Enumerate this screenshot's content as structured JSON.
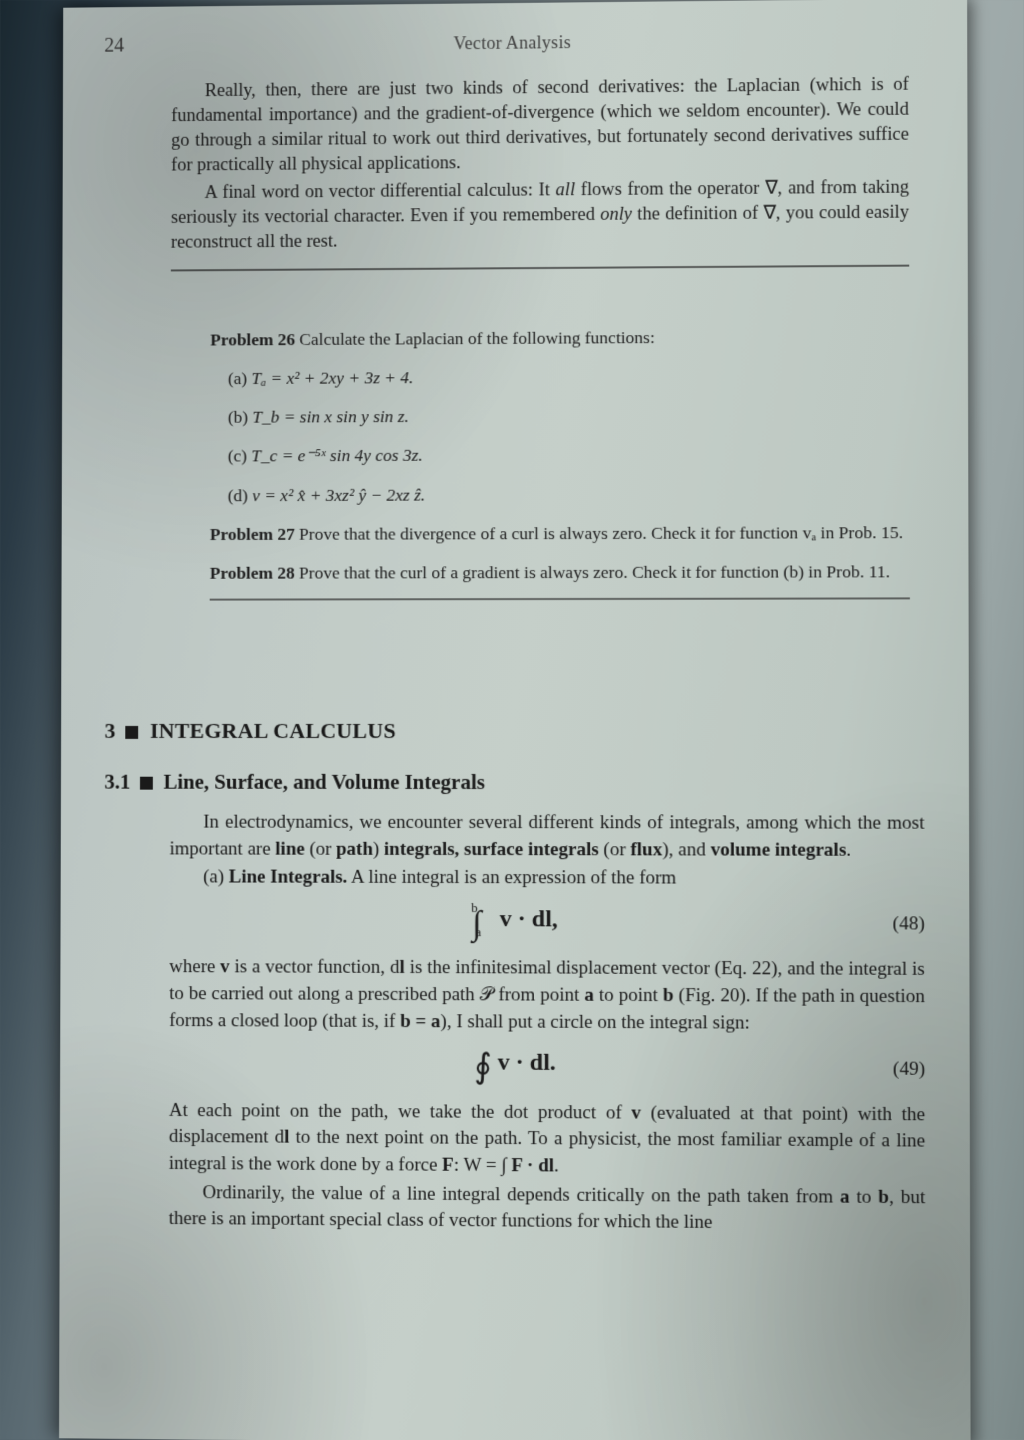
{
  "page_number": "24",
  "running_head": "Vector Analysis",
  "paragraphs": {
    "p1": "Really, then, there are just two kinds of second derivatives: the Laplacian (which is of fundamental importance) and the gradient-of-divergence (which we seldom encounter). We could go through a similar ritual to work out third derivatives, but fortunately second derivatives suffice for practically all physical applications.",
    "p2a": "A final word on vector differential calculus: It ",
    "p2_em1": "all",
    "p2b": " flows from the operator ∇, and from taking seriously its vectorial character. Even if you remembered ",
    "p2_em2": "only",
    "p2c": " the definition of ∇, you could easily reconstruct all the rest."
  },
  "problems": {
    "p26_lead": "Problem 26",
    "p26_text": " Calculate the Laplacian of the following functions:",
    "p26a_label": "(a) ",
    "p26a": "Tₐ = x² + 2xy + 3z + 4.",
    "p26b_label": "(b) ",
    "p26b": "T_b = sin x sin y sin z.",
    "p26c_label": "(c) ",
    "p26c": "T_c = e⁻⁵ˣ sin 4y cos 3z.",
    "p26d_label": "(d) ",
    "p26d": "v = x² x̂ + 3xz² ŷ − 2xz ẑ.",
    "p27_lead": "Problem 27",
    "p27_text": " Prove that the divergence of a curl is always zero. Check it for function vₐ in Prob. 15.",
    "p28_lead": "Problem 28",
    "p28_text": " Prove that the curl of a gradient is always zero. Check it for function (b) in Prob. 11."
  },
  "section": {
    "num": "3",
    "title": "INTEGRAL CALCULUS",
    "sub_num": "3.1",
    "sub_title": "Line, Surface, and Volume Integrals"
  },
  "main": {
    "m1a": "In electrodynamics, we encounter several different kinds of integrals, among which the most important are ",
    "m1b": "line",
    "m1c": " (or ",
    "m1d": "path",
    "m1e": ") ",
    "m1f": "integrals, surface integrals",
    "m1g": " (or ",
    "m1h": "flux",
    "m1i": "), and ",
    "m1j": "volume integrals",
    "m1k": ".",
    "m2a": "(a) ",
    "m2b": "Line Integrals.",
    "m2c": " A line integral is an expression of the form",
    "eq48": "∫  v · dl,",
    "eq48_num": "(48)",
    "m3a": "where ",
    "m3v": "v",
    "m3b": " is a vector function, d",
    "m3l": "l",
    "m3c": " is the infinitesimal displacement vector (Eq. 22), and the integral is to be carried out along a prescribed path 𝒫 from point ",
    "m3d": "a",
    "m3e": " to point ",
    "m3f": "b",
    "m3g": " (Fig. 20). If the path in question forms a closed loop (that is, if ",
    "m3h": "b = a",
    "m3i": "), I shall put a circle on the integral sign:",
    "eq49": "∮ v · dl.",
    "eq49_num": "(49)",
    "m4a": "At each point on the path, we take the dot product of ",
    "m4b": "v",
    "m4c": " (evaluated at that point) with the displacement d",
    "m4d": "l",
    "m4e": " to the next point on the path. To a physicist, the most familiar example of a line integral is the work done by a force ",
    "m4f": "F",
    "m4g": ": W = ∫ ",
    "m4h": "F · dl",
    "m4i": ".",
    "m5a": "Ordinarily, the value of a line integral depends critically on the path taken from ",
    "m5b": "a",
    "m5c": " to ",
    "m5d": "b",
    "m5e": ", but there is an important special class of vector functions for which the line"
  },
  "equations": {
    "int_lower": "a",
    "int_upper": "b",
    "integrand48": "v · dl,",
    "integrand49": "v · dl."
  }
}
